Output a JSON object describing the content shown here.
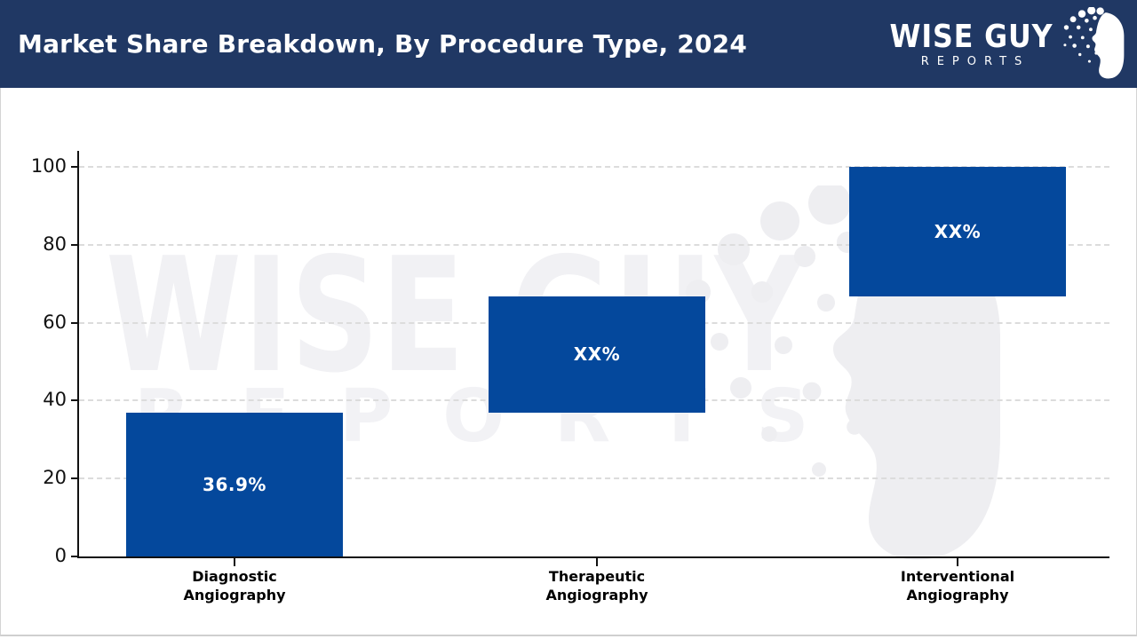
{
  "header": {
    "title": "Market Share Breakdown, By Procedure Type, 2024",
    "bg_color": "#203864",
    "logo": {
      "name": "WISE GUY REPORTS",
      "line1": "WISE GUY",
      "line2": "REPORTS"
    }
  },
  "watermark": {
    "line1": "WISE GUY",
    "line2": "REPORTS"
  },
  "chart_data": {
    "type": "bar",
    "subtype": "waterfall",
    "title": "Market Share Breakdown, By Procedure Type, 2024",
    "categories": [
      "Diagnostic\nAngiography",
      "Therapeutic\nAngiography",
      "Interventional\nAngiography"
    ],
    "segments": [
      {
        "category": "Diagnostic Angiography",
        "start": 0,
        "end": 36.9,
        "label": "36.9%"
      },
      {
        "category": "Therapeutic Angiography",
        "start": 37.0,
        "end": 66.7,
        "label": "XX%"
      },
      {
        "category": "Interventional Angiography",
        "start": 66.7,
        "end": 100,
        "label": "XX%"
      }
    ],
    "yticks": [
      0,
      20,
      40,
      60,
      80,
      100
    ],
    "ylim": [
      0,
      104
    ],
    "xlabel": "",
    "ylabel": "",
    "grid": "horizontal-dashed",
    "legend": "none",
    "colors": {
      "bar": "#04489c",
      "bar_label": "#ffffff",
      "grid": "#dcdcdc",
      "axis": "#111111",
      "tick_text": "#111111"
    }
  }
}
